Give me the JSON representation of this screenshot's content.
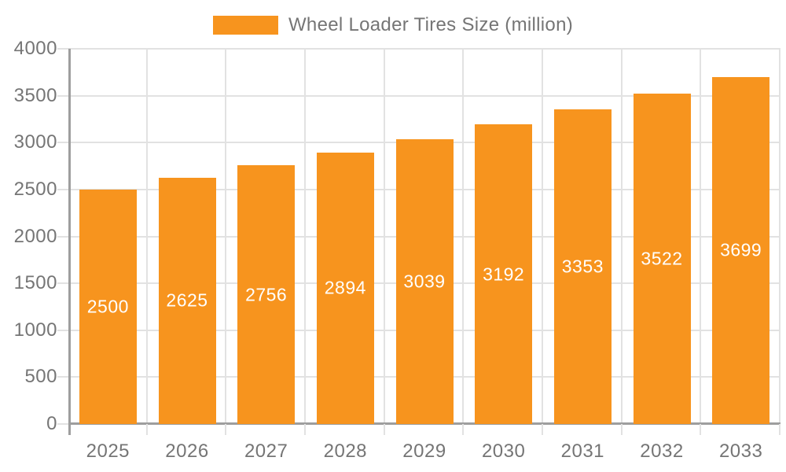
{
  "chart_data": {
    "type": "bar",
    "title": "Wheel Loader Tires Size (million)",
    "series_name": "Wheel Loader Tires Size (million)",
    "categories": [
      "2025",
      "2026",
      "2027",
      "2028",
      "2029",
      "2030",
      "2031",
      "2032",
      "2033"
    ],
    "values": [
      2500,
      2625,
      2756,
      2894,
      3039,
      3192,
      3353,
      3522,
      3699
    ],
    "xlabel": "",
    "ylabel": "",
    "ylim": [
      0,
      4000
    ],
    "ytick_step": 500,
    "yticks": [
      0,
      500,
      1000,
      1500,
      2000,
      2500,
      3000,
      3500,
      4000
    ],
    "grid": true,
    "legend_position": "top",
    "bar_value_labels_shown": true,
    "colors": {
      "bar": "#F7941E",
      "bar_label": "#FFFFFF",
      "axis_text": "#757575",
      "grid_line": "#E2E2E2",
      "axis_line": "#9E9E9E",
      "background": "#FFFFFF"
    }
  }
}
